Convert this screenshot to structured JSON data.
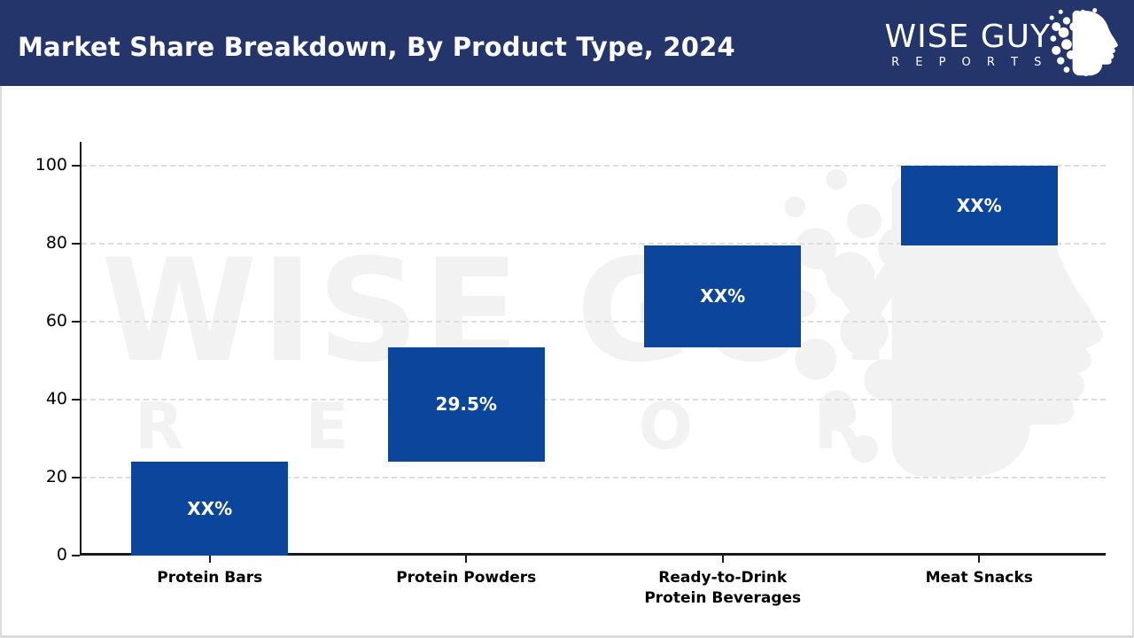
{
  "header": {
    "title": "Market Share Breakdown, By Product Type, 2024",
    "logo": {
      "name": "WISE GUY",
      "sub": "R E P O R T S"
    },
    "bg_color": "#23356b"
  },
  "watermark": {
    "name": "WISE GUY",
    "sub": "R E P O R T S"
  },
  "colors": {
    "header_bg": "#23356b",
    "bar": "#0b459c",
    "bar_label": "#ffffff",
    "grid": "#dedede",
    "axis": "#1a1a1a",
    "watermark": "#f2f2f2"
  },
  "chart_data": {
    "type": "bar",
    "subtype": "waterfall",
    "title": "Market Share Breakdown, By Product Type, 2024",
    "categories": [
      "Protein Bars",
      "Protein Powders",
      "Ready-to-Drink Protein Beverages",
      "Meat Snacks"
    ],
    "category_lines": [
      [
        "Protein Bars"
      ],
      [
        "Protein Powders"
      ],
      [
        "Ready-to-Drink",
        "Protein Beverages"
      ],
      [
        "Meat Snacks"
      ]
    ],
    "segments": [
      {
        "category": "Protein Bars",
        "start": 0,
        "end": 24,
        "label": "XX%"
      },
      {
        "category": "Protein Powders",
        "start": 24,
        "end": 53.5,
        "label": "29.5%"
      },
      {
        "category": "Ready-to-Drink Protein Beverages",
        "start": 53.5,
        "end": 79.5,
        "label": "XX%"
      },
      {
        "category": "Meat Snacks",
        "start": 79.5,
        "end": 100,
        "label": "XX%"
      }
    ],
    "xlabel": "",
    "ylabel": "",
    "ylim": [
      0,
      100
    ],
    "yticks": [
      0,
      20,
      40,
      60,
      80,
      100
    ],
    "grid": "horizontal-dashed",
    "legend": "none"
  }
}
